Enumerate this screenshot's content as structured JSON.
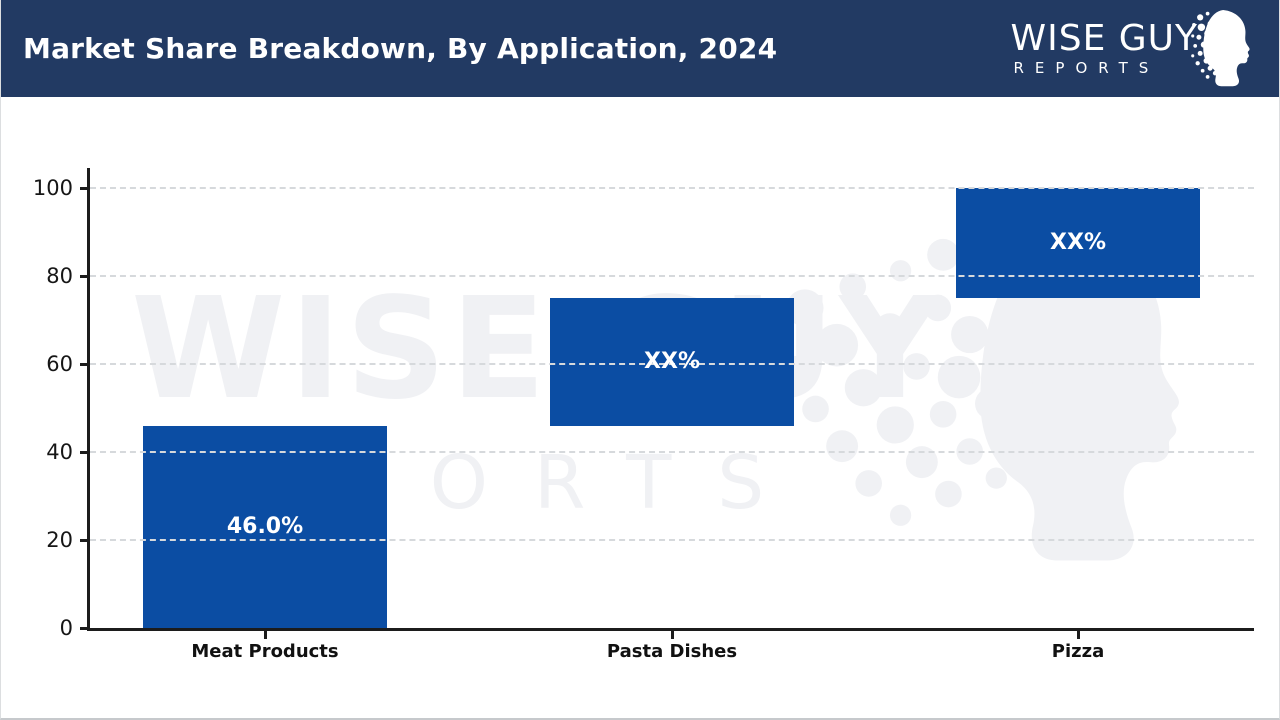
{
  "header": {
    "title": "Market Share Breakdown, By Application, 2024",
    "logo": {
      "line1": "WISE GUY",
      "line2": "REPORTS"
    }
  },
  "watermark": {
    "line1": "WISE GUY",
    "line2": "REPORTS"
  },
  "colors": {
    "header_bg": "#223a63",
    "bar": "#0b4da3",
    "bar_label": "#ffffff",
    "axis": "#1c1c1c",
    "grid": "#d6d9dc",
    "watermark": "#f0f1f4"
  },
  "chart_data": {
    "type": "bar",
    "subtype": "cumulative-waterfall",
    "title": "Market Share Breakdown, By Application, 2024",
    "categories": [
      "Meat Products",
      "Pasta Dishes",
      "Pizza"
    ],
    "segments": [
      {
        "category": "Meat Products",
        "start": 0,
        "end": 46.0,
        "label": "46.0%"
      },
      {
        "category": "Pasta Dishes",
        "start": 46.0,
        "end": 75.0,
        "label": "XX%"
      },
      {
        "category": "Pizza",
        "start": 75.0,
        "end": 100.0,
        "label": "XX%"
      }
    ],
    "yticks": [
      0,
      20,
      40,
      60,
      80,
      100
    ],
    "ylim": [
      0,
      105
    ],
    "xlabel": "",
    "ylabel": "",
    "grid": "horizontal-dashed",
    "legend_position": "none"
  }
}
